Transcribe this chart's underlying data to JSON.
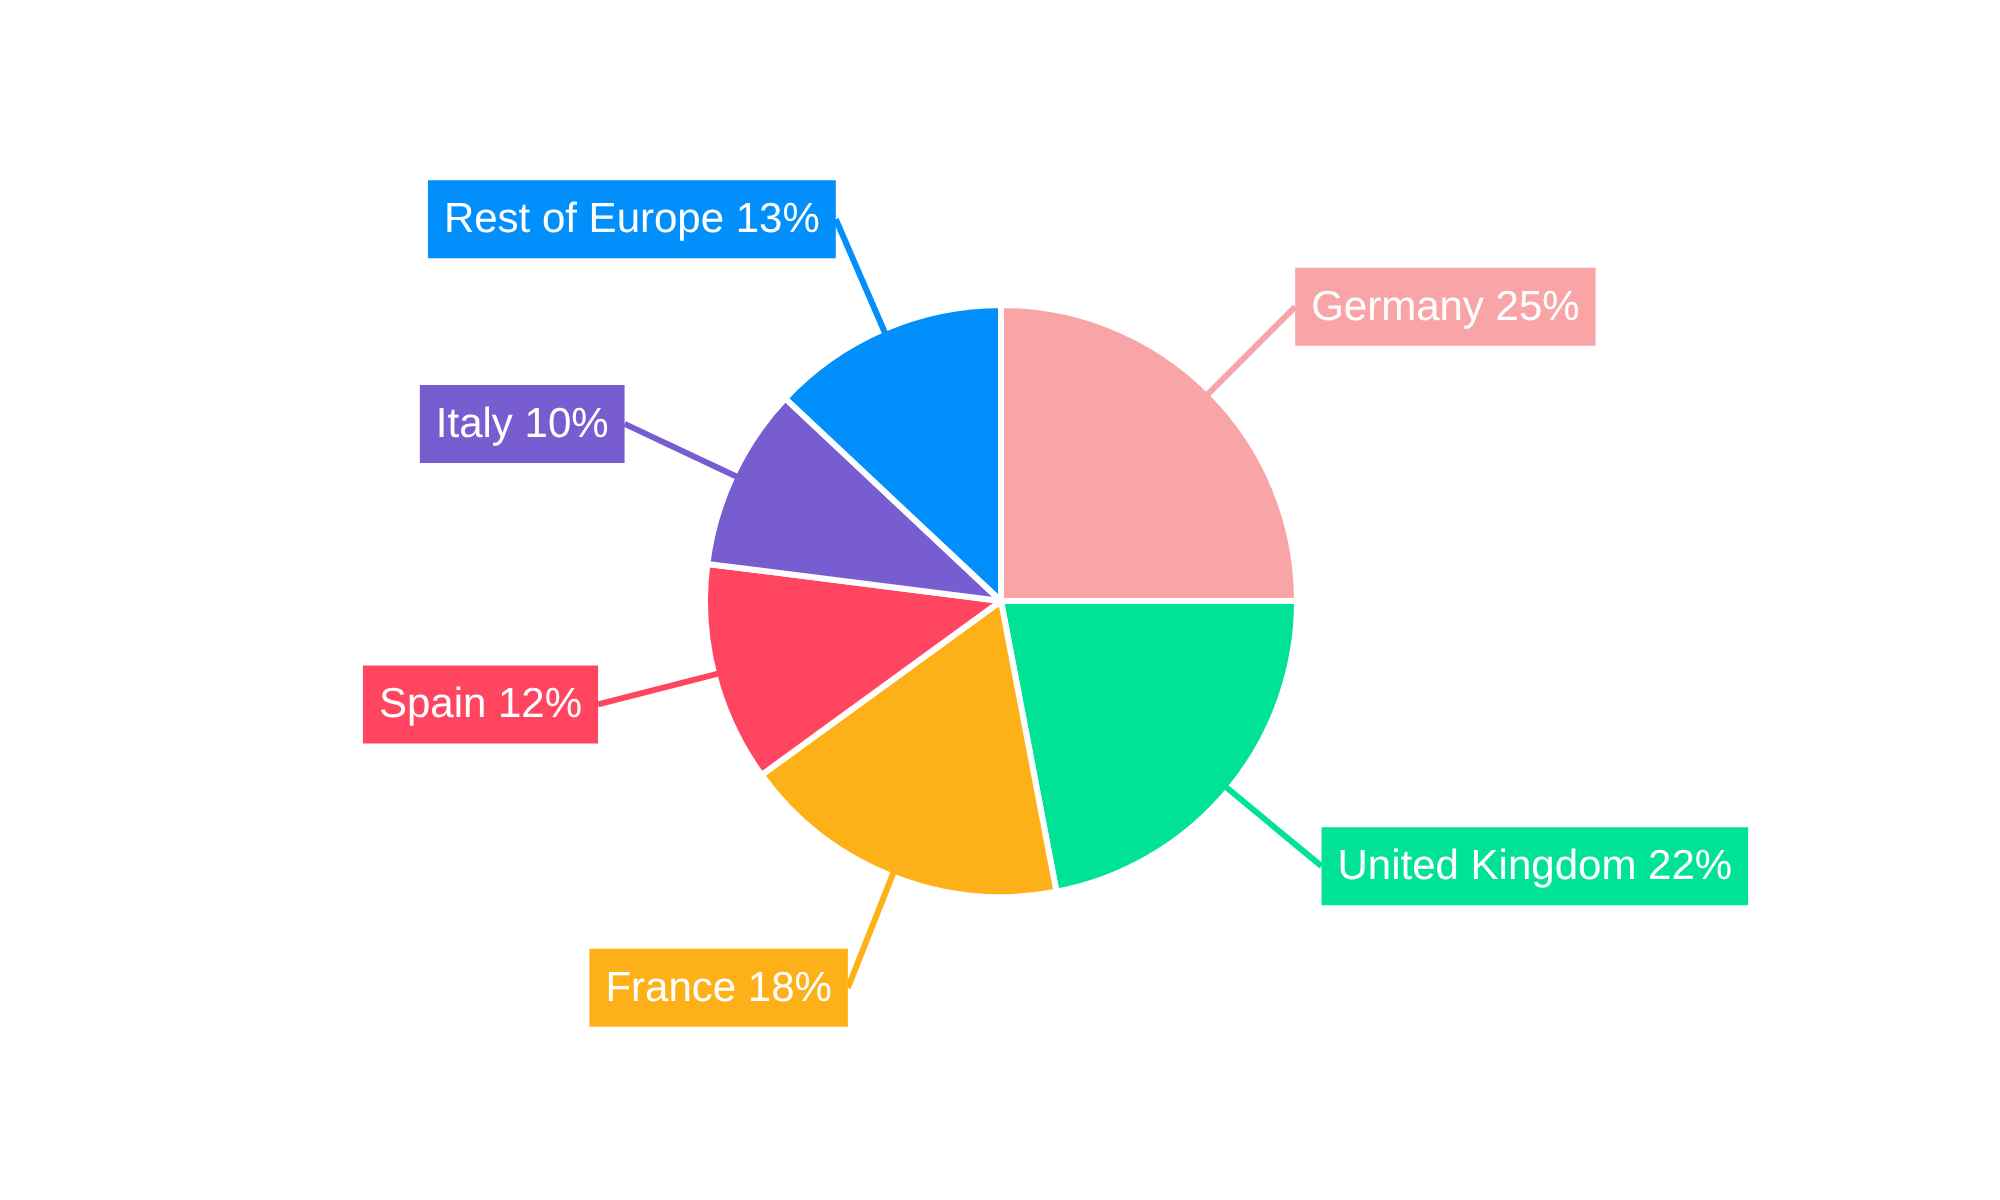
{
  "chart_data": {
    "type": "pie",
    "categories": [
      "Germany",
      "United Kingdom",
      "France",
      "Spain",
      "Italy",
      "Rest of Europe"
    ],
    "values": [
      25,
      22,
      18,
      12,
      10,
      13
    ],
    "value_labels": [
      "25%",
      "22%",
      "18%",
      "12%",
      "10%",
      "13%"
    ],
    "colors": [
      "#f9a5a7",
      "#00e396",
      "#feb019",
      "#ff4560",
      "#775dd0",
      "#008ffb"
    ]
  }
}
